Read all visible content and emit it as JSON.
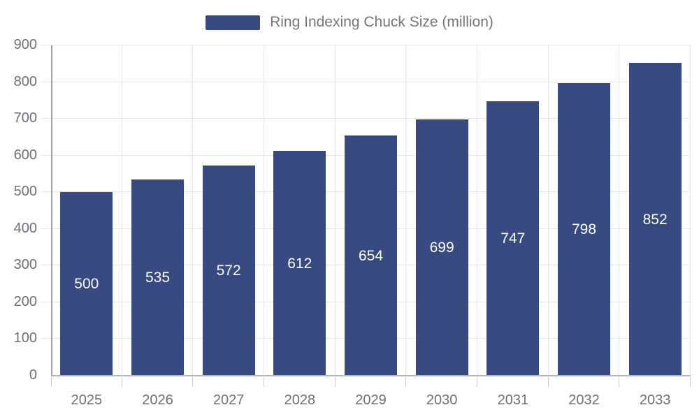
{
  "legend": {
    "label": "Ring Indexing Chuck Size (million)"
  },
  "colors": {
    "bar": "#384a82",
    "value_label": "#ffffff",
    "grid": "#e4e6ea",
    "axis_line": "#9ba0a6",
    "x_axis_line": "#b3b6bb",
    "tick": "#c6c9cd",
    "axis_text": "#6e7079",
    "legend_text": "#73777d",
    "background": "#ffffff"
  },
  "chart_data": {
    "type": "bar",
    "title": "Ring Indexing Chuck Size (million)",
    "categories": [
      "2025",
      "2026",
      "2027",
      "2028",
      "2029",
      "2030",
      "2031",
      "2032",
      "2033"
    ],
    "values": [
      500,
      535,
      572,
      612,
      654,
      699,
      747,
      798,
      852
    ],
    "series_name": "Ring Indexing Chuck Size (million)",
    "xlabel": "",
    "ylabel": "",
    "ylim": [
      0,
      900
    ],
    "yticks": [
      0,
      100,
      200,
      300,
      400,
      500,
      600,
      700,
      800,
      900
    ],
    "grid": true,
    "legend_position": "top-center",
    "value_label_position": "inside-center"
  }
}
